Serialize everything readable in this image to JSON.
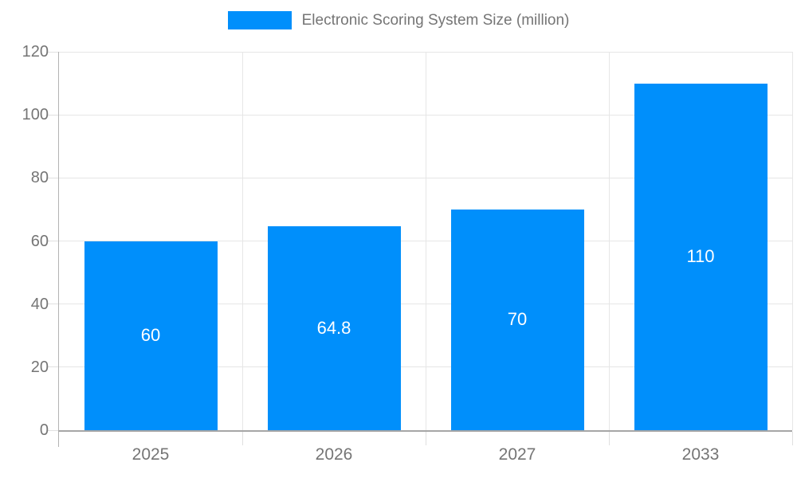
{
  "chart_data": {
    "type": "bar",
    "title": "Electronic Scoring System Size (million)",
    "categories": [
      "2025",
      "2026",
      "2027",
      "2033"
    ],
    "values": [
      60,
      64.8,
      70,
      110
    ],
    "value_labels": [
      "60",
      "64.8",
      "70",
      "110"
    ],
    "xlabel": "",
    "ylabel": "",
    "ylim": [
      0,
      120
    ],
    "yticks": [
      0,
      20,
      40,
      60,
      80,
      100,
      120
    ],
    "grid": true,
    "legend_position": "top-center",
    "colors": {
      "bar": "#008ffb",
      "bar_value_label": "#ffffff",
      "axis_text": "#757575",
      "gridline": "#e6e6e6",
      "axis_line": "#b3b3b3"
    }
  }
}
